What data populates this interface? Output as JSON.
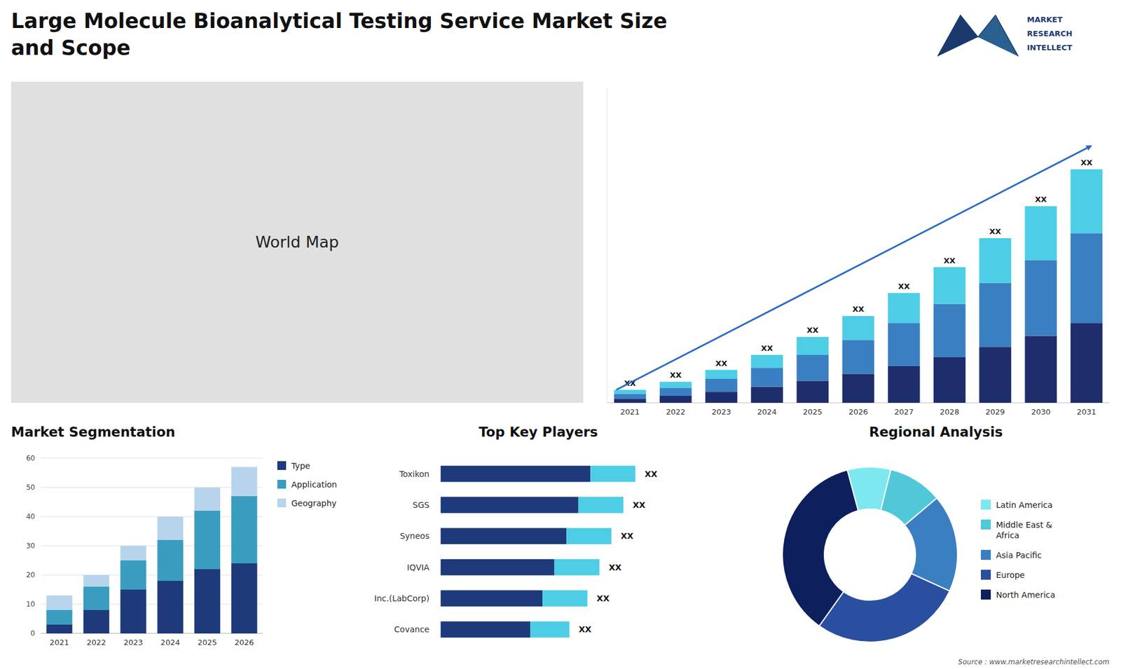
{
  "chart_data": [
    {
      "type": "bar",
      "title": "Large Molecule Bioanalytical Testing Service Market Size\nand Scope",
      "annotations": [
        "MARKET",
        "RESEARCH",
        "INTELLECT",
        "Source : www.marketresearchintellect.com"
      ],
      "categories": [
        "2021",
        "2022",
        "2023",
        "2024",
        "2025",
        "2026",
        "2027",
        "2028",
        "2029",
        "2030",
        "2031"
      ],
      "series": [
        {
          "color": "#1e2d6b",
          "values": [
            2.0,
            3.5,
            5.5,
            8.0,
            11.0,
            14.5,
            18.5,
            23.0,
            28.0,
            33.5,
            40.0
          ]
        },
        {
          "color": "#3a7fc1",
          "values": [
            2.5,
            4.0,
            6.5,
            9.5,
            13.0,
            17.0,
            21.5,
            26.5,
            32.0,
            38.0,
            45.0
          ]
        },
        {
          "color": "#4ecde6",
          "values": [
            2.0,
            3.0,
            4.5,
            6.5,
            9.0,
            12.0,
            15.0,
            18.5,
            22.5,
            27.0,
            32.0
          ]
        }
      ],
      "stacked": true,
      "totals": [
        6.5,
        10.5,
        16.5,
        24,
        33,
        43.5,
        55,
        68,
        82.5,
        98.5,
        117
      ],
      "total_labels": [
        "XX",
        "XX",
        "XX",
        "XX",
        "XX",
        "XX",
        "XX",
        "XX",
        "XX",
        "XX",
        "XX"
      ],
      "ylim": [
        0,
        157.95
      ],
      "tick_labels": "x"
    },
    {
      "type": "map",
      "annotations": [
        "World Map"
      ]
    },
    {
      "type": "bar",
      "title": "Market Segmentation",
      "categories": [
        "2021",
        "2022",
        "2023",
        "2024",
        "2025",
        "2026"
      ],
      "series": [
        {
          "name": "Type",
          "color": "#1e3a7b",
          "values": [
            3,
            8,
            15,
            18,
            22,
            24
          ]
        },
        {
          "name": "Application",
          "color": "#3a9dbf",
          "values": [
            5,
            8,
            10,
            14,
            20,
            23
          ]
        },
        {
          "name": "Geography",
          "color": "#b8d4ec",
          "values": [
            5,
            4,
            5,
            8,
            8,
            10
          ]
        }
      ],
      "stacked": true,
      "ylim": [
        0,
        60
      ],
      "yticks": [
        0,
        10,
        20,
        30,
        40,
        50,
        60
      ],
      "grid": true,
      "legend": "right"
    },
    {
      "type": "bar",
      "orientation": "horizontal",
      "title": "Top Key Players",
      "categories": [
        "Toxikon",
        "SGS",
        "Syneos",
        "IQVIA",
        "Inc.(LabCorp)",
        "Covance"
      ],
      "series": [
        {
          "color": "#1e3a7b",
          "values": [
            0.5,
            0.46,
            0.42,
            0.38,
            0.34,
            0.3
          ]
        },
        {
          "color": "#4ecde6",
          "values": [
            0.15,
            0.15,
            0.15,
            0.15,
            0.15,
            0.13
          ]
        }
      ],
      "stacked": true,
      "totals": [
        0.65,
        0.61,
        0.57,
        0.53,
        0.49,
        0.43
      ],
      "total_labels": [
        "XX",
        "XX",
        "XX",
        "XX",
        "XX",
        "XX"
      ],
      "xlim": [
        0,
        1
      ],
      "tick_labels": false
    },
    {
      "type": "pie",
      "title": "Regional Analysis",
      "categories": [
        "Latin America",
        "Middle East &\nAfrica",
        "Asia Pacific",
        "Europe",
        "North America"
      ],
      "values": [
        8,
        10,
        18,
        28,
        36
      ],
      "colors": [
        "#7ee8f0",
        "#50c8d8",
        "#3a7fc1",
        "#2a4fa0",
        "#0d1f5c"
      ],
      "legend": "right"
    }
  ]
}
